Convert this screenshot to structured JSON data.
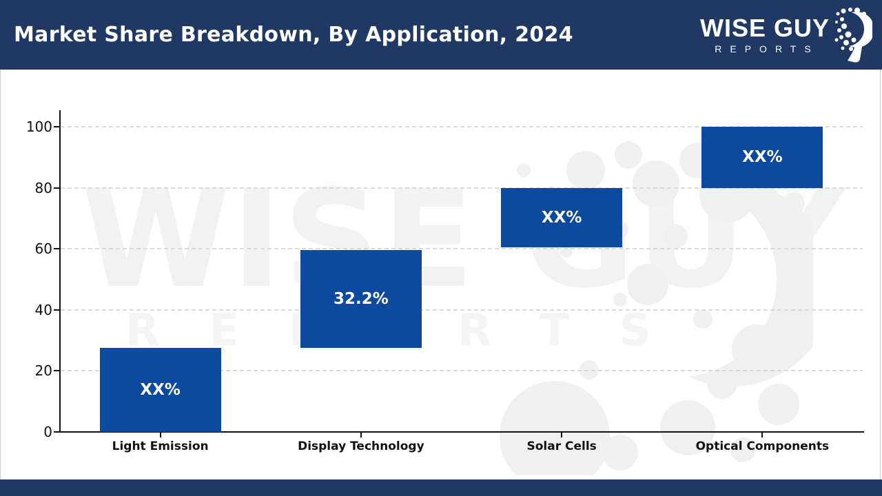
{
  "header": {
    "title": "Market Share Breakdown, By Application, 2024",
    "bg_color": "#1f3864",
    "text_color": "#ffffff",
    "logo": {
      "wordmark": "WISE GUY",
      "subtext": "REPORTS"
    }
  },
  "watermark": {
    "wordmark": "WISE GUY",
    "subtext": "REPORTS"
  },
  "footer": {
    "bg_color": "#1f3864"
  },
  "chart_data": {
    "type": "bar",
    "variant": "waterfall-floating-bars",
    "title": "Market Share Breakdown, By Application, 2024",
    "categories": [
      "Light Emission",
      "Display Technology",
      "Solar Cells",
      "Optical Components"
    ],
    "bars": [
      {
        "category": "Light Emission",
        "start": 0,
        "end": 27.5,
        "label": "XX%"
      },
      {
        "category": "Display Technology",
        "start": 27.5,
        "end": 59.7,
        "label": "32.2%"
      },
      {
        "category": "Solar Cells",
        "start": 60.5,
        "end": 80,
        "label": "XX%"
      },
      {
        "category": "Optical Components",
        "start": 80,
        "end": 100,
        "label": "XX%"
      }
    ],
    "xlabel": "",
    "ylabel": "",
    "yticks": [
      0,
      20,
      40,
      60,
      80,
      100
    ],
    "ylim": [
      0,
      105
    ],
    "grid": "horizontal-dashed",
    "grid_color": "#d9d9d9",
    "bar_color": "#0b4a9e",
    "bar_label_color": "#ffffff",
    "axis_color": "#111111",
    "legend": "none"
  }
}
